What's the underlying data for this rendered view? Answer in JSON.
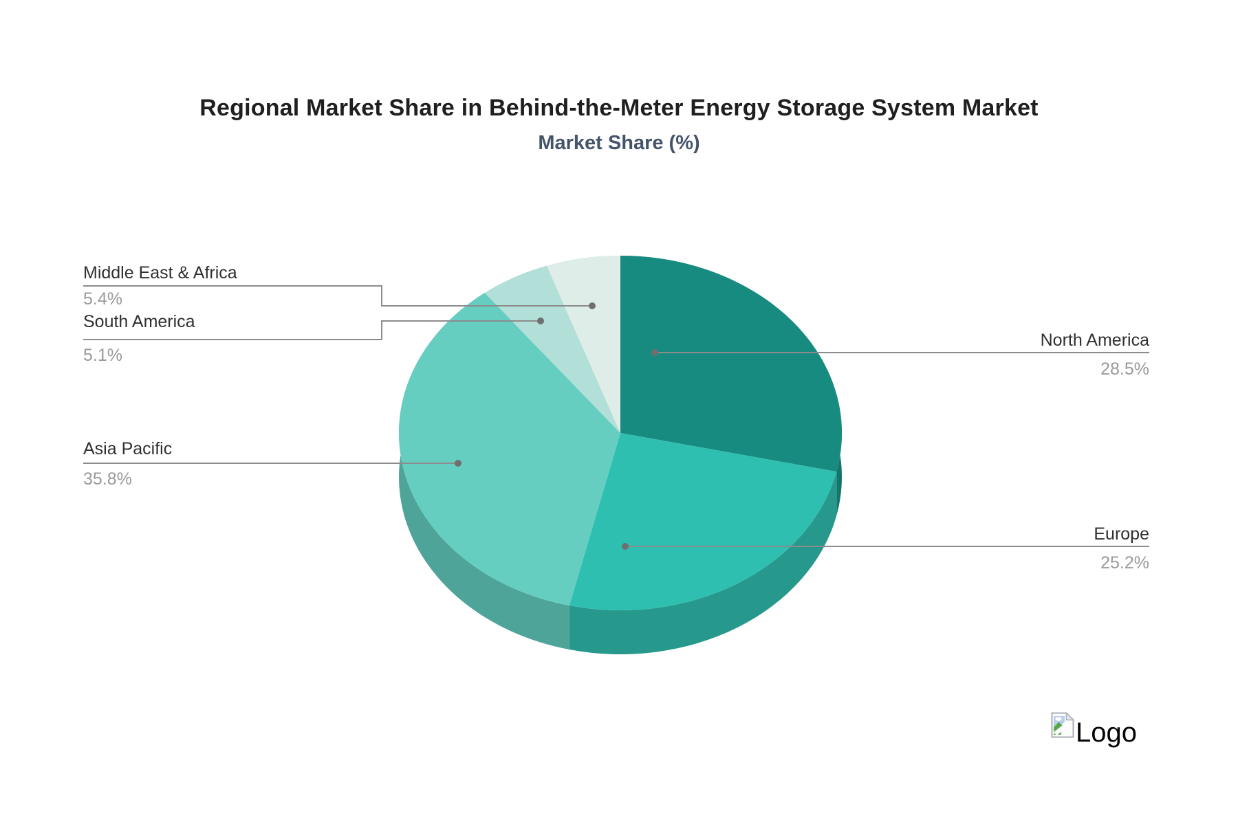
{
  "header": {
    "title": "Regional Market Share in Behind-the-Meter Energy Storage System Market",
    "subtitle": "Market Share (%)"
  },
  "chart_data": {
    "type": "pie",
    "style": "3d-pie",
    "title": "Regional Market Share in Behind-the-Meter Energy Storage System Market",
    "subtitle": "Market Share (%)",
    "unit": "%",
    "direction": "clockwise",
    "start_angle_deg": 0,
    "legend_position": "callout-labels",
    "slices": [
      {
        "label": "North America",
        "value": 28.5,
        "pct": "28.5%",
        "color": "#188B80",
        "side_color": "#14756C"
      },
      {
        "label": "Europe",
        "value": 25.2,
        "pct": "25.2%",
        "color": "#2FBFB0",
        "side_color": "#27988C"
      },
      {
        "label": "Asia Pacific",
        "value": 35.8,
        "pct": "35.8%",
        "color": "#65CEC1",
        "side_color": "#4FA499"
      },
      {
        "label": "South America",
        "value": 5.1,
        "pct": "5.1%",
        "color": "#B2DFD8",
        "side_color": "#93BcB5"
      },
      {
        "label": "Middle East & Africa",
        "value": 5.4,
        "pct": "5.4%",
        "color": "#DFEDE9",
        "side_color": "#BDCFCA"
      }
    ],
    "colors": {
      "label_text": "#303030",
      "percent_text": "#9A9A9A",
      "leader_line": "#8C8C8C",
      "leader_dot": "#6F6F6F",
      "title": "#1F1F1F",
      "subtitle": "#44546A"
    }
  },
  "logo": {
    "alt": "Logo"
  }
}
